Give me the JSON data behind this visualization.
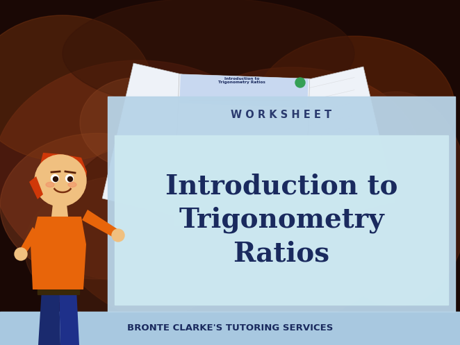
{
  "title_main": "Introduction to\nTrigonometry\nRatios",
  "subtitle": "W O R K S H E E T",
  "footer": "BRONTE CLARKE'S TUTORING SERVICES",
  "light_blue_box": "#b8d4e8",
  "lighter_blue_box": "#cce8f0",
  "footer_bg": "#a8c8e0",
  "title_color": "#1a2a5e",
  "footer_color": "#1a2a5e",
  "worksheet_label_color": "#2a3a6e"
}
